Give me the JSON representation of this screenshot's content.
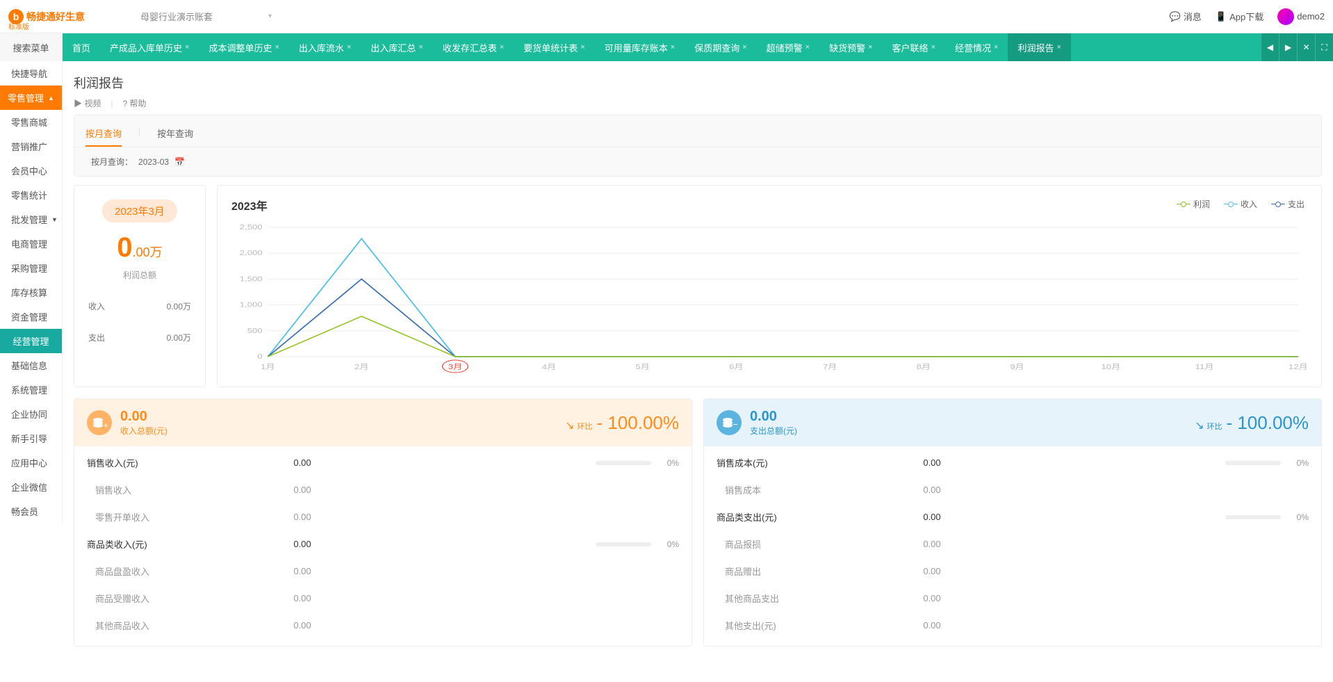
{
  "brand": {
    "name": "畅捷通好生意",
    "edition": "标准版"
  },
  "account": "母婴行业演示账套",
  "topbar": {
    "msg": "消息",
    "app": "App下载",
    "user": "demo2"
  },
  "sidebar": {
    "search": "搜索菜单",
    "quicknav": "快捷导航",
    "items": [
      {
        "label": "零售管理",
        "style": "active-orange",
        "arrow": "▲"
      },
      {
        "label": "零售商城"
      },
      {
        "label": "营销推广"
      },
      {
        "label": "会员中心"
      },
      {
        "label": "零售统计"
      },
      {
        "label": "批发管理",
        "arrow": "▼"
      },
      {
        "label": "电商管理"
      },
      {
        "label": "采购管理"
      },
      {
        "label": "库存核算"
      },
      {
        "label": "资金管理"
      },
      {
        "label": "经营管理",
        "style": "active-teal"
      },
      {
        "label": "基础信息"
      },
      {
        "label": "系统管理"
      },
      {
        "label": "企业协同"
      },
      {
        "label": "新手引导"
      },
      {
        "label": "应用中心"
      },
      {
        "label": "企业微信"
      },
      {
        "label": "畅会员"
      }
    ]
  },
  "tabs": [
    {
      "label": "首页",
      "closable": false
    },
    {
      "label": "产成品入库单历史",
      "closable": true
    },
    {
      "label": "成本调整单历史",
      "closable": true
    },
    {
      "label": "出入库流水",
      "closable": true
    },
    {
      "label": "出入库汇总",
      "closable": true
    },
    {
      "label": "收发存汇总表",
      "closable": true
    },
    {
      "label": "要货单统计表",
      "closable": true
    },
    {
      "label": "可用量库存账本",
      "closable": true
    },
    {
      "label": "保质期查询",
      "closable": true
    },
    {
      "label": "超储预警",
      "closable": true
    },
    {
      "label": "缺货预警",
      "closable": true
    },
    {
      "label": "客户联络",
      "closable": true
    },
    {
      "label": "经营情况",
      "closable": true
    },
    {
      "label": "利润报告",
      "closable": true,
      "active": true
    }
  ],
  "page": {
    "title": "利润报告",
    "video": "视频",
    "help": "帮助",
    "sub_tabs": {
      "monthly": "按月查询",
      "yearly": "按年查询"
    },
    "filter_label": "按月查询：",
    "filter_value": "2023-03"
  },
  "kpi": {
    "pill": "2023年3月",
    "big_int": "0",
    "big_dec": ".00",
    "big_unit": "万",
    "sub": "利润总额",
    "income_label": "收入",
    "income_val": "0.00万",
    "expense_label": "支出",
    "expense_val": "0.00万"
  },
  "chart": {
    "title": "2023年",
    "type": "line",
    "legend": [
      {
        "name": "利润",
        "color": "#8fc31f"
      },
      {
        "name": "收入",
        "color": "#4fc1e9"
      },
      {
        "name": "支出",
        "color": "#3a6fb0"
      }
    ],
    "x_labels": [
      "1月",
      "2月",
      "3月",
      "4月",
      "5月",
      "6月",
      "7月",
      "8月",
      "9月",
      "10月",
      "11月",
      "12月"
    ],
    "x_active_index": 2,
    "y_ticks": [
      0,
      500,
      1000,
      1500,
      2000,
      2500
    ],
    "ylim": [
      0,
      2500
    ],
    "series": {
      "profit": [
        0,
        780,
        0,
        0,
        0,
        0,
        0,
        0,
        0,
        0,
        0,
        0
      ],
      "income": [
        0,
        2280,
        0,
        0,
        0,
        0,
        0,
        0,
        0,
        0,
        0,
        0
      ],
      "expense": [
        0,
        1500,
        0,
        0,
        0,
        0,
        0,
        0,
        0,
        0,
        0,
        0
      ]
    },
    "grid_color": "#eeeeee",
    "axis_color": "#cccccc",
    "tick_color": "#bbbbbb",
    "background": "#ffffff"
  },
  "income_card": {
    "value": "0.00",
    "label": "收入总额(元)",
    "hb": "环比",
    "change": "- 100.00%",
    "rows": [
      {
        "name": "销售收入(元)",
        "val": "0.00",
        "pct": "0%",
        "bar": true
      },
      {
        "name": "销售收入",
        "val": "0.00",
        "sub": true
      },
      {
        "name": "零售开单收入",
        "val": "0.00",
        "sub": true
      },
      {
        "name": "商品类收入(元)",
        "val": "0.00",
        "pct": "0%",
        "bar": true
      },
      {
        "name": "商品盘盈收入",
        "val": "0.00",
        "sub": true
      },
      {
        "name": "商品受赠收入",
        "val": "0.00",
        "sub": true
      },
      {
        "name": "其他商品收入",
        "val": "0.00",
        "sub": true
      }
    ]
  },
  "expense_card": {
    "value": "0.00",
    "label": "支出总额(元)",
    "hb": "环比",
    "change": "- 100.00%",
    "rows": [
      {
        "name": "销售成本(元)",
        "val": "0.00",
        "pct": "0%",
        "bar": true
      },
      {
        "name": "销售成本",
        "val": "0.00",
        "sub": true
      },
      {
        "name": "商品类支出(元)",
        "val": "0.00",
        "pct": "0%",
        "bar": true
      },
      {
        "name": "商品报损",
        "val": "0.00",
        "sub": true
      },
      {
        "name": "商品赠出",
        "val": "0.00",
        "sub": true
      },
      {
        "name": "其他商品支出",
        "val": "0.00",
        "sub": true
      },
      {
        "name": "其他支出(元)",
        "val": "0.00",
        "sub": true
      }
    ]
  }
}
